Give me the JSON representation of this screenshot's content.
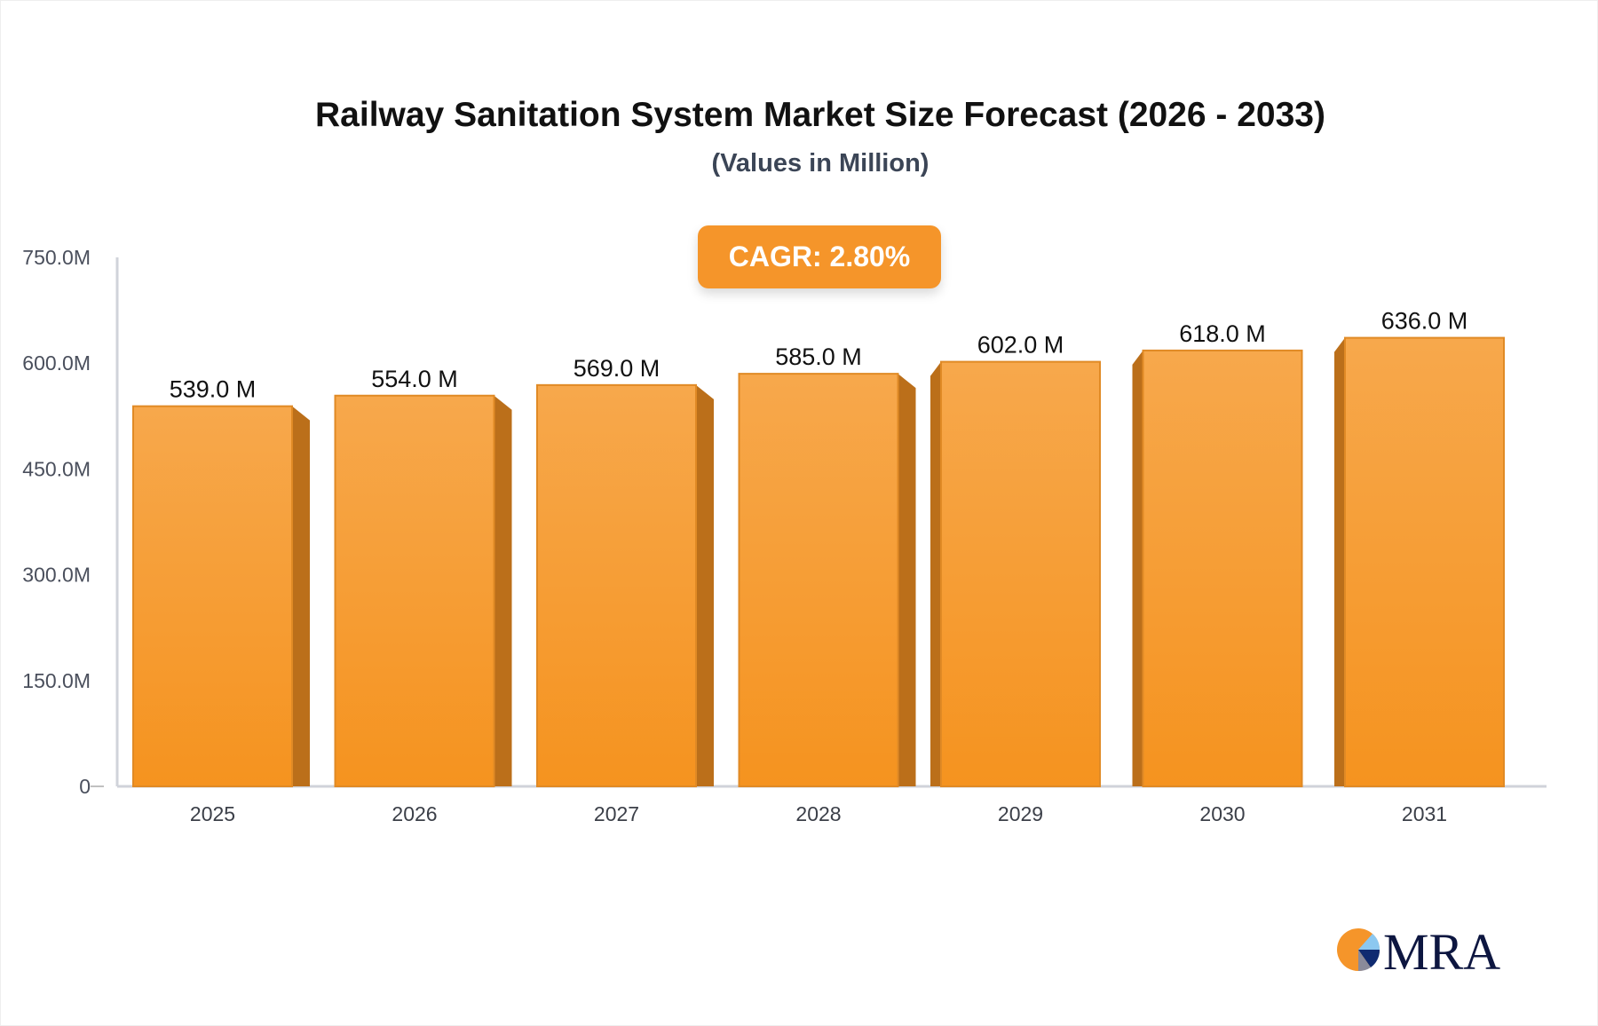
{
  "chart_data": {
    "type": "bar",
    "title": "Railway Sanitation System Market Size Forecast (2026 - 2033)",
    "subtitle": "(Values in Million)",
    "categories": [
      "2025",
      "2026",
      "2027",
      "2028",
      "2029",
      "2030",
      "2031"
    ],
    "values": [
      539.0,
      554.0,
      569.0,
      585.0,
      602.0,
      618.0,
      636.0
    ],
    "data_labels": [
      "539.0 M",
      "554.0 M",
      "569.0 M",
      "585.0 M",
      "602.0 M",
      "618.0 M",
      "636.0 M"
    ],
    "y_ticks": [
      0,
      150,
      300,
      450,
      600,
      750
    ],
    "y_tick_labels": [
      "0",
      "150.0M",
      "300.0M",
      "450.0M",
      "600.0M",
      "750.0M"
    ],
    "ylim": [
      0,
      750
    ],
    "xlabel": "",
    "ylabel": "",
    "grid": false,
    "bar_color": "#f5952a",
    "annotation": "CAGR: 2.80%"
  },
  "logo": {
    "text": "MRA"
  }
}
